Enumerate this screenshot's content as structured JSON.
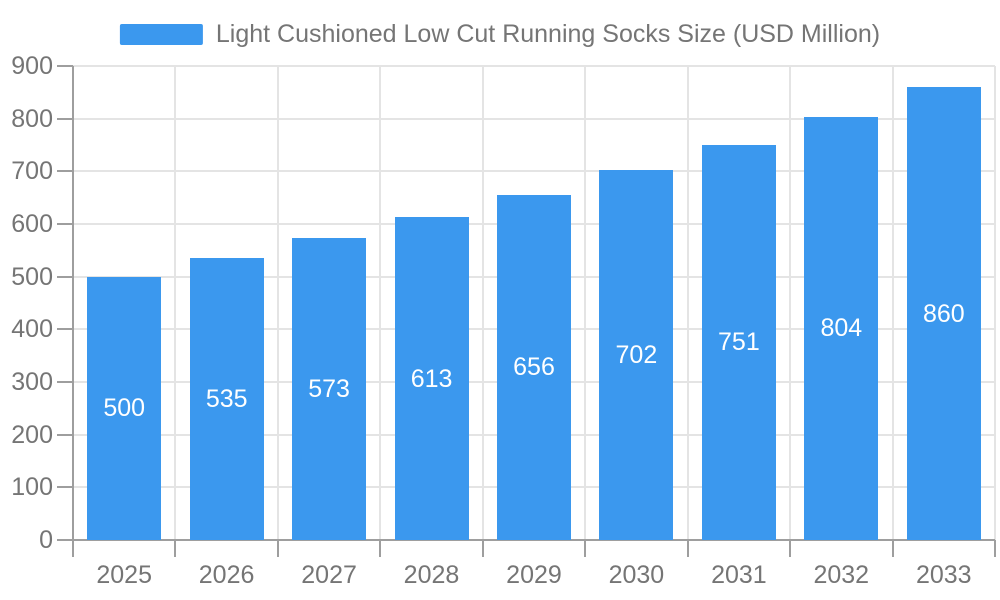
{
  "chart_data": {
    "type": "bar",
    "title": "Light Cushioned Low Cut Running Socks Size (USD Million)",
    "legend_position": "top",
    "categories": [
      "2025",
      "2026",
      "2027",
      "2028",
      "2029",
      "2030",
      "2031",
      "2032",
      "2033"
    ],
    "values": [
      500,
      535,
      573,
      613,
      656,
      702,
      751,
      804,
      860
    ],
    "bar_labels": [
      "500",
      "535",
      "573",
      "613",
      "656",
      "702",
      "751",
      "804",
      "860"
    ],
    "xlabel": "",
    "ylabel": "",
    "ylim": [
      0,
      900
    ],
    "ytick_step": 100,
    "grid": true,
    "colors": {
      "bar": "#3B98EE",
      "grid": "#E4E4E4",
      "axis": "#9E9E9E",
      "text": "#757575",
      "bar_label": "#FFFFFF",
      "background": "#FFFFFF"
    }
  }
}
